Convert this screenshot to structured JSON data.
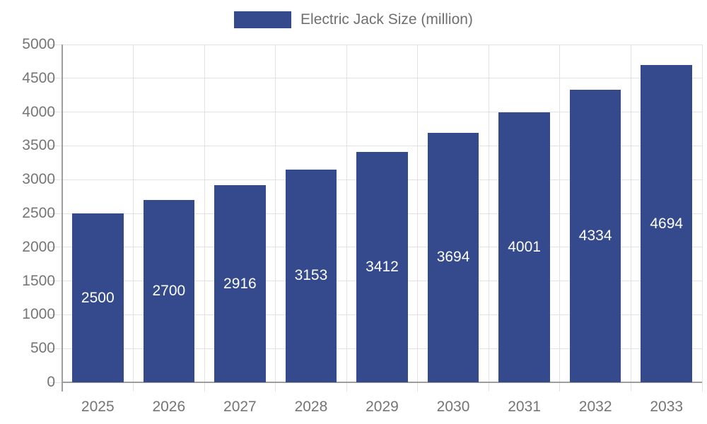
{
  "legend": {
    "label": "Electric Jack Size (million)"
  },
  "chart_data": {
    "type": "bar",
    "title": "Electric Jack Size (million)",
    "series_name": "Electric Jack Size (million)",
    "categories": [
      "2025",
      "2026",
      "2027",
      "2028",
      "2029",
      "2030",
      "2031",
      "2032",
      "2033"
    ],
    "values": [
      2500,
      2700,
      2916,
      3153,
      3412,
      3694,
      4001,
      4334,
      4694
    ],
    "bar_value_labels": [
      "2500",
      "2700",
      "2916",
      "3153",
      "3412",
      "3694",
      "4001",
      "4334",
      "4694"
    ],
    "xlabel": "",
    "ylabel": "",
    "ylim": [
      0,
      5000
    ],
    "ytick_step": 500,
    "yticks": [
      0,
      500,
      1000,
      1500,
      2000,
      2500,
      3000,
      3500,
      4000,
      4500,
      5000
    ],
    "grid": true,
    "legend_position": "top",
    "colors": {
      "bar": "#354A8C",
      "bar_value_text": "#ffffff",
      "gridline": "#e2e2e2",
      "axis_line": "#9e9e9e",
      "tick_text": "#757575",
      "legend_text": "#6f6f6f",
      "background": "#ffffff"
    }
  }
}
